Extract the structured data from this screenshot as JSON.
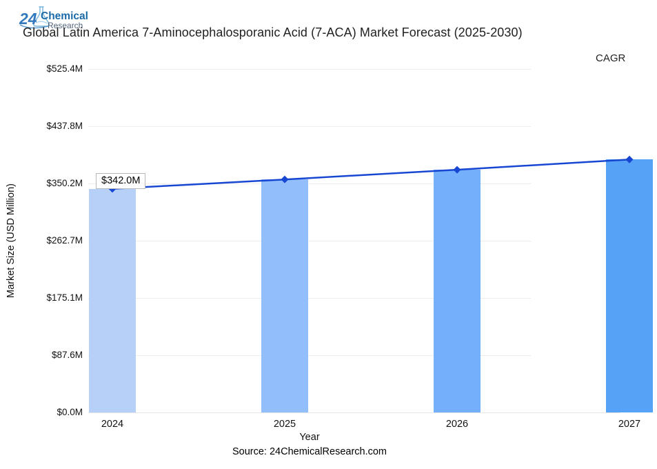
{
  "logo": {
    "number": "24",
    "line1": "Chemical",
    "line2": "Research"
  },
  "header": {
    "title": "Global Latin America 7-Aminocephalosporanic Acid (7-ACA) Market Forecast (2025-2030)",
    "cagr_label": "CAGR"
  },
  "chart_data": {
    "type": "bar",
    "line_overlay": true,
    "title": "Global Latin America 7-Aminocephalosporanic Acid (7-ACA) Market Forecast (2025-2030)",
    "xlabel": "Year",
    "ylabel": "Market Size (USD Million)",
    "categories": [
      "2024",
      "2025",
      "2026",
      "2027"
    ],
    "series": [
      {
        "name": "Market Size (USD Million)",
        "values": [
          342.0,
          356.4,
          371.3,
          386.9
        ]
      }
    ],
    "ylim": [
      0,
      525.4
    ],
    "ytick_values": [
      0,
      87.6,
      175.1,
      262.7,
      350.2,
      437.8,
      525.4
    ],
    "ytick_labels": [
      "$0.0M",
      "$87.6M",
      "$175.1M",
      "$262.7M",
      "$350.2M",
      "$437.8M",
      "$525.4M"
    ],
    "grid": true,
    "annotation": {
      "index": 0,
      "text": "$342.0M"
    },
    "bar_colors": [
      "#b7d0f8",
      "#93befc",
      "#74affb",
      "#56a2f6"
    ],
    "line_color": "#1747d2"
  },
  "footer": {
    "source": "Source: 24ChemicalResearch.com"
  }
}
